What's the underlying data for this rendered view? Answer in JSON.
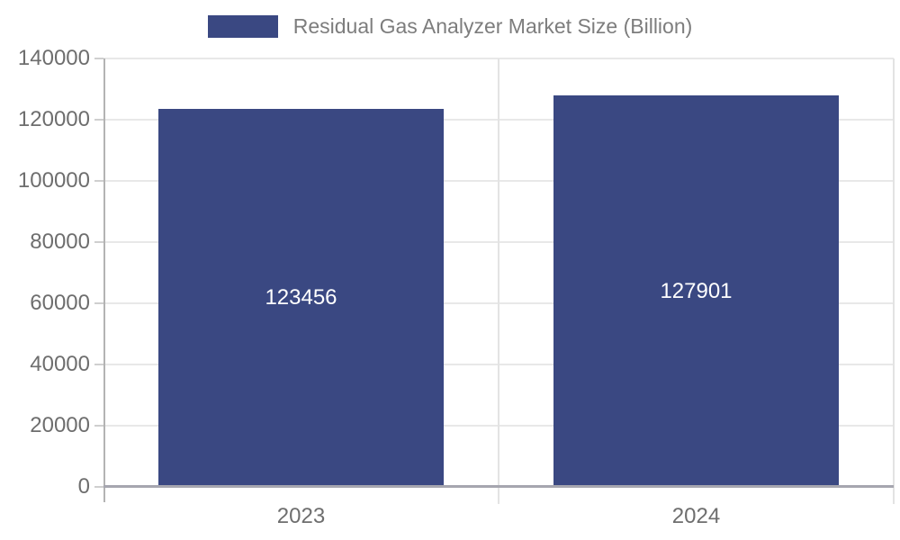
{
  "legend": {
    "items": [
      {
        "label": "Residual Gas Analyzer Market Size (Billion)",
        "swatch_color": "#3a4882"
      }
    ],
    "position": "top-center"
  },
  "chart_data": {
    "type": "bar",
    "title": "Residual Gas Analyzer Market Size (Billion)",
    "categories": [
      "2023",
      "2024"
    ],
    "series": [
      {
        "name": "Residual Gas Analyzer Market Size (Billion)",
        "values": [
          123456,
          127901
        ],
        "color": "#3a4882"
      }
    ],
    "value_labels": [
      "123456",
      "127901"
    ],
    "xlabel": "",
    "ylabel": "",
    "ylim": [
      0,
      140000
    ],
    "yticks": [
      0,
      20000,
      40000,
      60000,
      80000,
      100000,
      120000,
      140000
    ],
    "ytick_labels": [
      "0",
      "20000",
      "40000",
      "60000",
      "80000",
      "100000",
      "120000",
      "140000"
    ],
    "grid": true,
    "legend_position": "top-center",
    "bar_width_fraction": 0.72
  },
  "colors": {
    "background": "#ffffff",
    "bar": "#3a4882",
    "bar_value_label": "#ffffff",
    "grid_line": "#e8e8e8",
    "category_separator": "#e3e3e3",
    "x_axis_line": "#a6a6af",
    "y_axis_line": "#b3b3b3",
    "tick_mark": "#cfcfcf",
    "tick_label": "#6e6e6e",
    "legend_text": "#7d7d7d"
  }
}
